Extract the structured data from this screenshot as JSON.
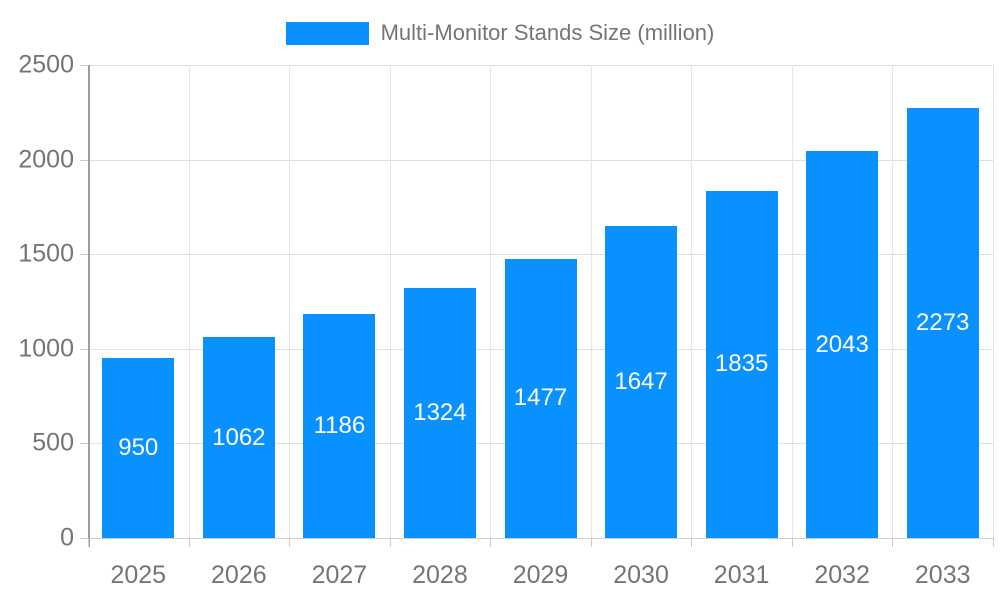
{
  "chart_data": {
    "type": "bar",
    "title": "Multi-Monitor Stands Size (million)",
    "categories": [
      "2025",
      "2026",
      "2027",
      "2028",
      "2029",
      "2030",
      "2031",
      "2032",
      "2033"
    ],
    "values": [
      950,
      1062,
      1186,
      1324,
      1477,
      1647,
      1835,
      2043,
      2273
    ],
    "series": [
      {
        "name": "Multi-Monitor Stands Size (million)",
        "values": [
          950,
          1062,
          1186,
          1324,
          1477,
          1647,
          1835,
          2043,
          2273
        ]
      }
    ],
    "xlabel": "",
    "ylabel": "",
    "ylim": [
      0,
      2500
    ],
    "yticks": [
      0,
      500,
      1000,
      1500,
      2000,
      2500
    ],
    "grid": true,
    "legend_position": "top",
    "value_labels_shown": true,
    "colors": {
      "bar": "#0991ff",
      "value_label": "#ffffff",
      "grid_line": "#e0e0e0",
      "axis_line": "#9e9e9e",
      "tick_mark": "#cccccc",
      "tick_text": "#757575",
      "legend_text": "#757575",
      "background": "#ffffff"
    }
  }
}
